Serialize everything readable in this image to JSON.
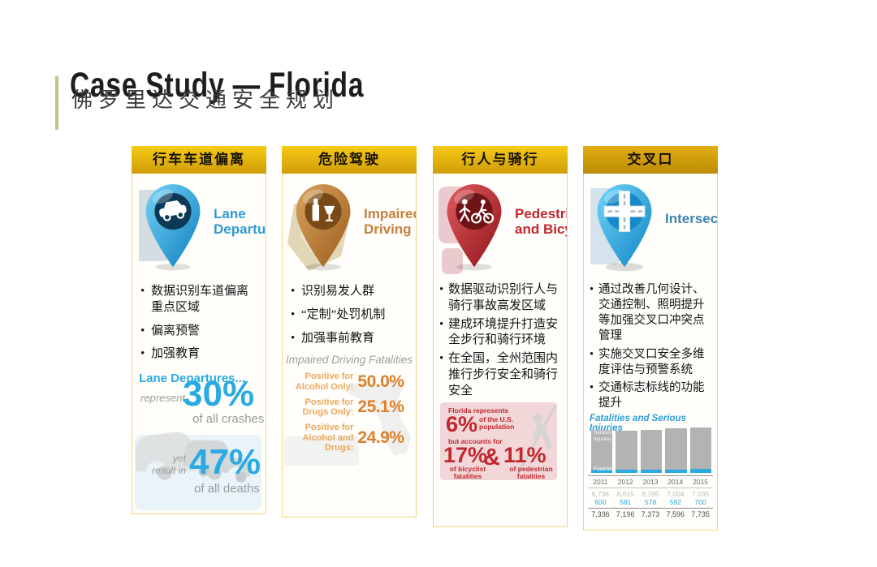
{
  "slide": {
    "title": "Case Study — Florida",
    "subtitle": "佛罗里达交通安全规划",
    "accent_color": "#b5c98a"
  },
  "columns": [
    {
      "header": "行车车道偏离",
      "pin_label_lines": [
        "Lane",
        "Departures"
      ],
      "accent_color": "#29abe2",
      "bullets": [
        "数据识别车道偏离重点区域",
        "偏离预警",
        "加强教育"
      ],
      "stats": {
        "heading": "Lane Departures...",
        "figure1_pre": "represent",
        "figure1_value": "30%",
        "figure1_caption": "of all crashes",
        "figure2_pre": "yet result in",
        "figure2_value": "47%",
        "figure2_caption": "of all deaths"
      }
    },
    {
      "header": "危险驾驶",
      "pin_label_lines": [
        "Impaired",
        "Driving"
      ],
      "accent_color": "#dd7f2b",
      "bullets": [
        "识别易发人群",
        "“定制”处罚机制",
        "加强事前教育"
      ],
      "stats": {
        "heading": "Impaired Driving Fatalities",
        "rows": [
          {
            "label": "Positive for Alcohol Only:",
            "value": "50.0%"
          },
          {
            "label": "Positive for Drugs Only:",
            "value": "25.1%"
          },
          {
            "label": "Positive for Alcohol and Drugs:",
            "value": "24.9%"
          }
        ]
      }
    },
    {
      "header": "行人与骑行",
      "pin_label_lines": [
        "Pedestrians",
        "and Bicyclists"
      ],
      "accent_color": "#c1272d",
      "bullets": [
        "数据驱动识别行人与骑行事故高发区域",
        "建成环境提升打造安全步行和骑行环境",
        "在全国，全州范围内推行步行安全和骑行安全"
      ],
      "stats": {
        "intro": "Florida represents",
        "population_value": "6%",
        "population_caption": "of the U.S. population",
        "accounts_for": "but accounts for",
        "bicyclist_value": "17%",
        "bicyclist_caption": "of bicyclist fatalities",
        "ampersand": "&",
        "pedestrian_value": "11%",
        "pedestrian_caption": "of pedestrian fatalities"
      }
    },
    {
      "header": "交叉口",
      "pin_label_lines": [
        "Intersections"
      ],
      "accent_color": "#29abe2",
      "bullets": [
        "通过改善几何设计、交通控制、照明提升等加强交叉口冲突点管理",
        "实施交叉口安全多维度评估与预警系统",
        "交通标志标线的功能提升"
      ]
    }
  ],
  "chart_data": {
    "type": "bar",
    "stacked": true,
    "title": "Fatalities and Serious Injuries",
    "categories": [
      "2011",
      "2012",
      "2013",
      "2014",
      "2015"
    ],
    "series": [
      {
        "name": "Serious Injuries",
        "color": "#b3b3b3",
        "values": [
          6736,
          6615,
          6795,
          7004,
          7035
        ]
      },
      {
        "name": "Fatalities",
        "color": "#29abe2",
        "values": [
          600,
          581,
          578,
          592,
          700
        ]
      }
    ],
    "totals": [
      7336,
      7196,
      7373,
      7596,
      7735
    ],
    "serious_display": [
      "6,736",
      "6,615",
      "6,795",
      "7,004",
      "7,035"
    ],
    "fatalities_display": [
      "600",
      "581",
      "578",
      "592",
      "700"
    ],
    "totals_display": [
      "7,336",
      "7,196",
      "7,373",
      "7,596",
      "7,735"
    ],
    "legend_position": "on-bars",
    "ylim": [
      0,
      7735
    ],
    "grid": false
  }
}
